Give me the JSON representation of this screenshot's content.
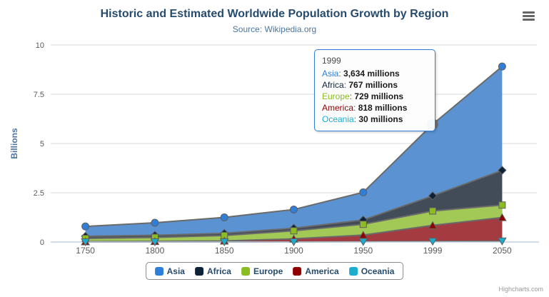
{
  "chart": {
    "title": "Historic and Estimated Worldwide Population Growth by Region",
    "subtitle": "Source: Wikipedia.org",
    "credits": "Highcharts.com",
    "menu_icon": "hamburger-icon"
  },
  "theme": {
    "title_color": "#274b6d",
    "subtitle_color": "#4d759e",
    "axis_title_color": "#4d759e",
    "axis_label_color": "#5a5a5a",
    "grid_color": "#d8d8d8",
    "axis_line_color": "#c0d0e0",
    "series_line_color": "#6a6a6a",
    "marker_stroke_color": "#5f5f5f",
    "tooltip_border_color": "#2f7ed8",
    "legend_border_color": "#8c8c8c",
    "legend_text_color": "#274b6d"
  },
  "chart_data": {
    "type": "area",
    "stacking": "normal",
    "title": "Historic and Estimated Worldwide Population Growth by Region",
    "subtitle": "Source: Wikipedia.org",
    "categories": [
      "1750",
      "1800",
      "1850",
      "1900",
      "1950",
      "1999",
      "2050"
    ],
    "xlabel": "",
    "ylabel": "Billions",
    "unit": "millions",
    "ylim": [
      0,
      10
    ],
    "yticks": [
      0,
      2.5,
      5,
      7.5,
      10
    ],
    "ytick_labels": [
      "0",
      "2.5",
      "5",
      "7.5",
      "10"
    ],
    "grid": true,
    "legend_position": "bottom",
    "series": [
      {
        "name": "Asia",
        "marker": "circle",
        "color": "#2f7ed8",
        "area_color": "#5b93d2",
        "values": [
          502,
          635,
          809,
          947,
          1402,
          3634,
          5268
        ]
      },
      {
        "name": "Africa",
        "marker": "diamond",
        "color": "#0d233a",
        "area_color": "#414c58",
        "values": [
          106,
          107,
          111,
          133,
          221,
          767,
          1766
        ]
      },
      {
        "name": "Europe",
        "marker": "square",
        "color": "#8bbc21",
        "area_color": "#a2c855",
        "values": [
          163,
          203,
          276,
          408,
          547,
          729,
          628
        ]
      },
      {
        "name": "America",
        "marker": "triangle-up",
        "color": "#910000",
        "area_color": "#a43b40",
        "values": [
          18,
          31,
          54,
          156,
          339,
          818,
          1201
        ]
      },
      {
        "name": "Oceania",
        "marker": "triangle-down",
        "color": "#1aadce",
        "area_color": "#35b3cf",
        "values": [
          2,
          2,
          2,
          6,
          13,
          30,
          46
        ]
      }
    ],
    "hover": {
      "series": "Asia",
      "category_index": 5
    }
  },
  "tooltip": {
    "header": "1999",
    "value_suffix": "millions",
    "rows": [
      {
        "label": "Asia",
        "value": "3,634"
      },
      {
        "label": "Africa",
        "value": "767"
      },
      {
        "label": "Europe",
        "value": "729"
      },
      {
        "label": "America",
        "value": "818"
      },
      {
        "label": "Oceania",
        "value": "30"
      }
    ]
  },
  "legend": {
    "items": [
      "Asia",
      "Africa",
      "Europe",
      "America",
      "Oceania"
    ]
  }
}
